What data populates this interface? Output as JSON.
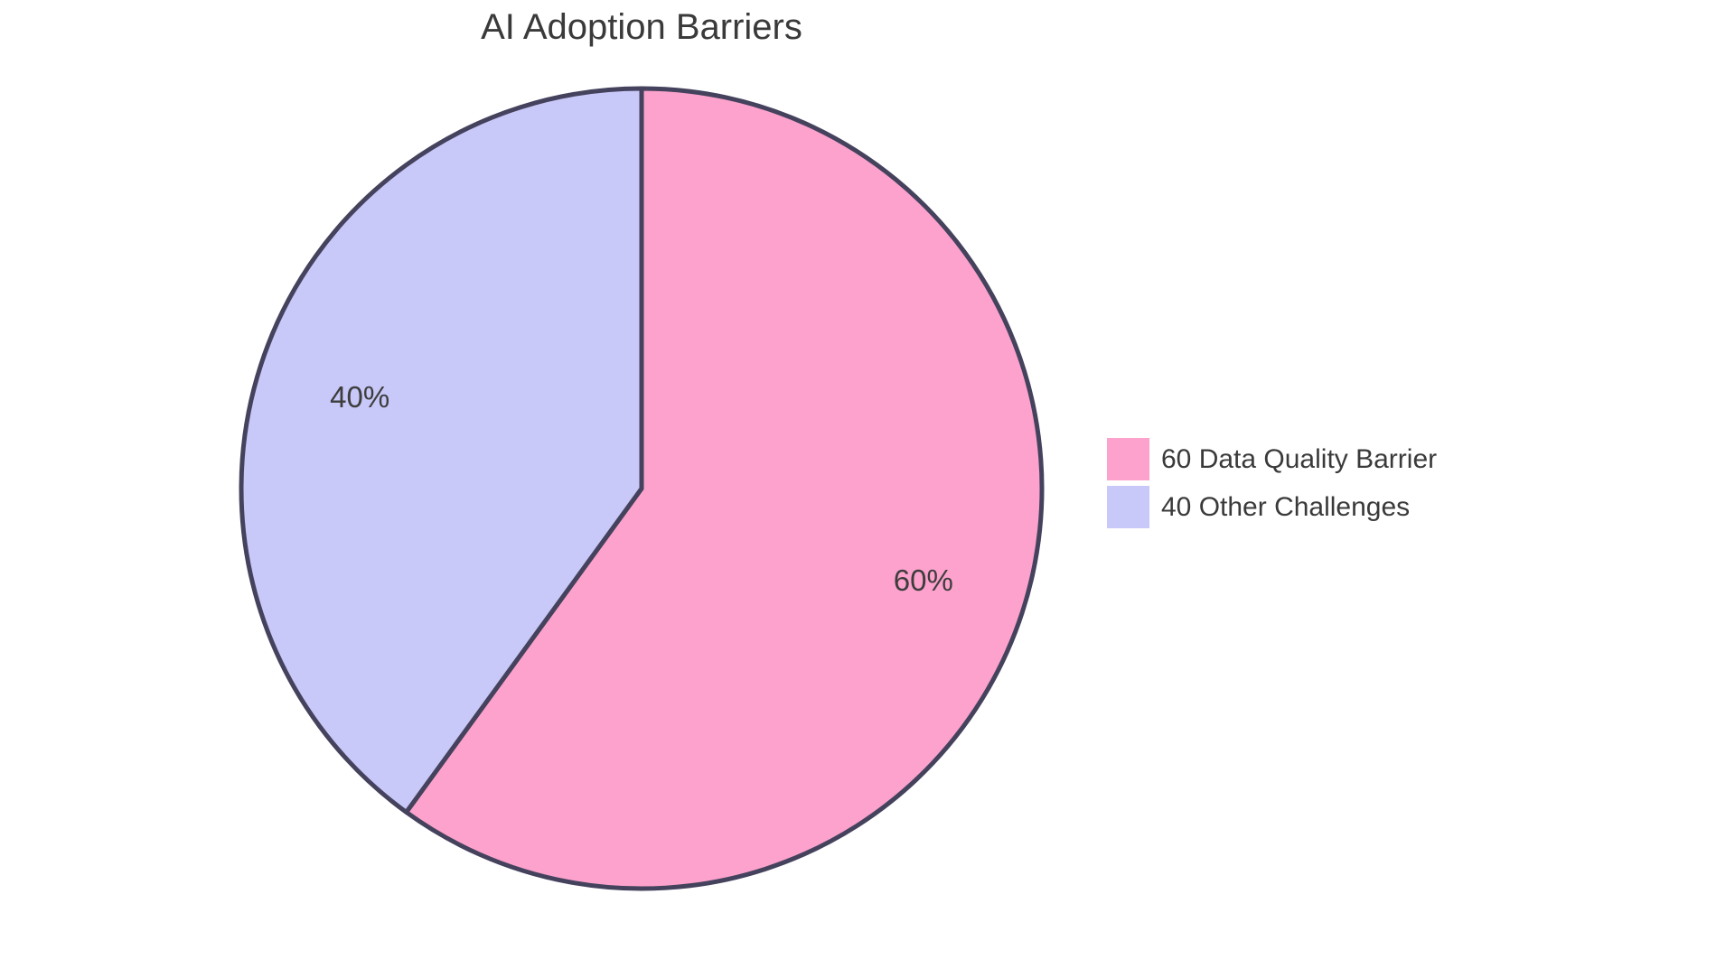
{
  "chart_data": {
    "type": "pie",
    "title": "AI Adoption Barriers",
    "slices": [
      {
        "legend_label": "60 Data Quality Barrier",
        "value": 60,
        "percent_label": "60%",
        "color": "#FCA2CC"
      },
      {
        "legend_label": "40 Other Challenges",
        "value": 40,
        "percent_label": "40%",
        "color": "#C8C8F9"
      }
    ],
    "start_angle_deg": 0,
    "direction": "clockwise",
    "legend_position": "right",
    "slice_outline_color": "#44425C",
    "label_text_color": "#3D3D3D",
    "title_text_color": "#3A3A3A",
    "background_color": "#FFFFFF"
  }
}
